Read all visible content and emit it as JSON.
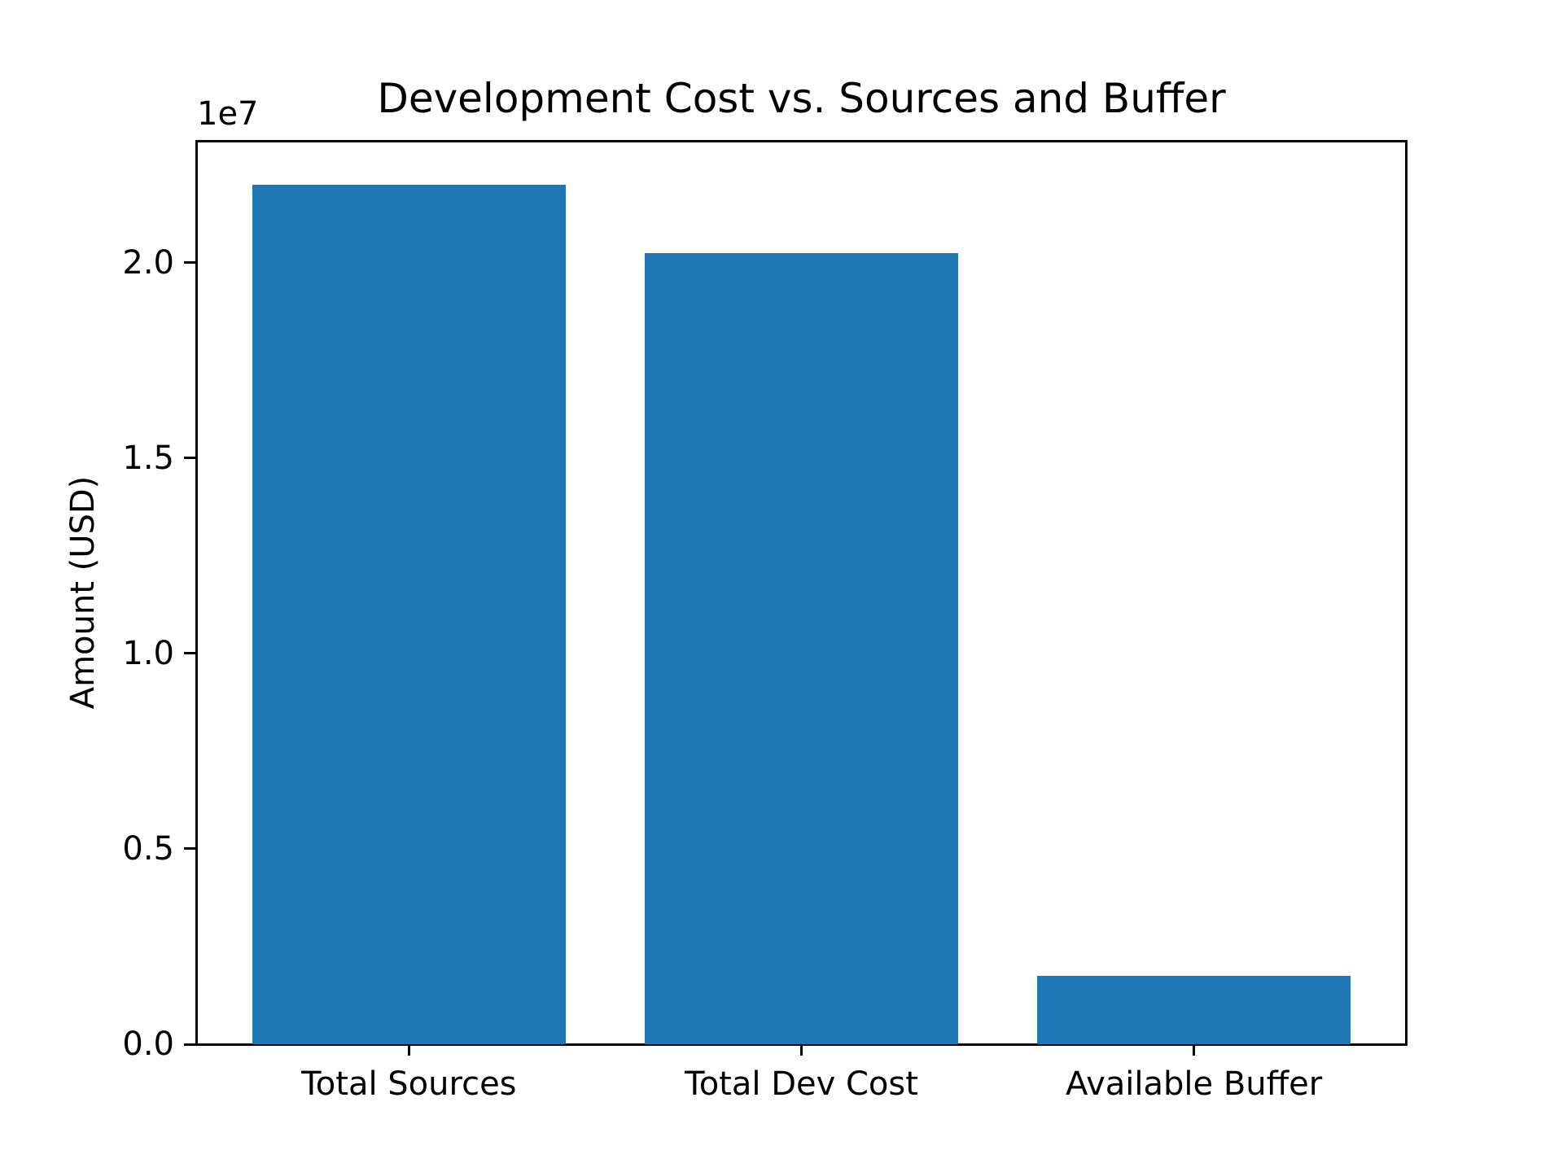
{
  "chart_data": {
    "type": "bar",
    "title": "Development Cost vs. Sources and Buffer",
    "xlabel": "",
    "ylabel": "Amount (USD)",
    "categories": [
      "Total Sources",
      "Total Dev Cost",
      "Available Buffer"
    ],
    "values": [
      22000000,
      20250000,
      1750000
    ],
    "bar_color": "#1f77b4",
    "ylim": [
      0,
      23100000
    ],
    "yticks": [
      {
        "value": 0,
        "label": "0.0"
      },
      {
        "value": 5000000,
        "label": "0.5"
      },
      {
        "value": 10000000,
        "label": "1.0"
      },
      {
        "value": 15000000,
        "label": "1.5"
      },
      {
        "value": 20000000,
        "label": "2.0"
      }
    ],
    "y_offset_text": "1e7",
    "grid": false,
    "legend": "none"
  }
}
